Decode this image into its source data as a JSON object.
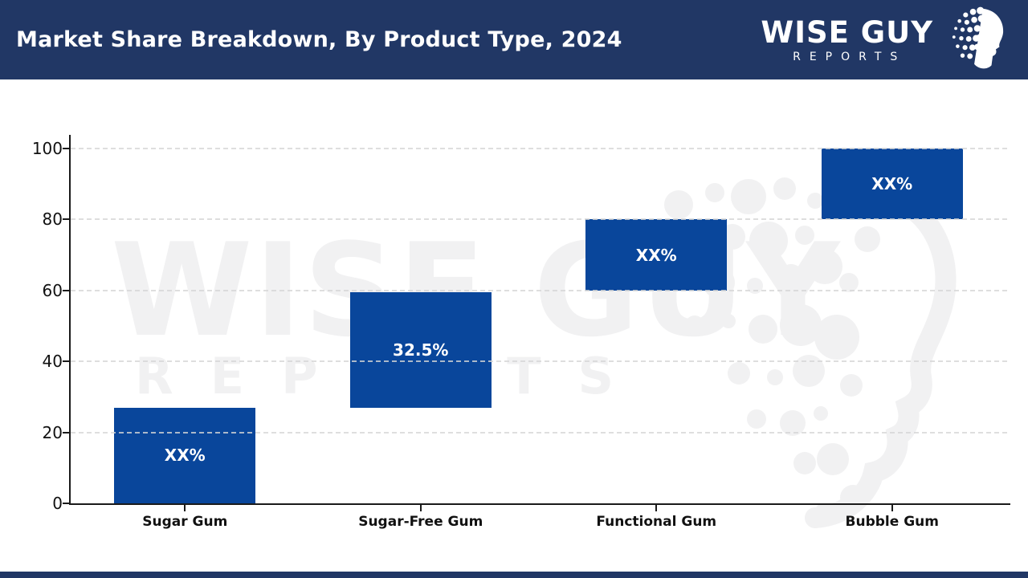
{
  "header": {
    "title": "Market Share Breakdown, By Product Type, 2024",
    "logo": {
      "line1": "WISE GUY",
      "line2": "REPORTS"
    }
  },
  "colors": {
    "header_navy": "#213765",
    "bar_blue": "#09469b",
    "grid_gray": "#d6d6d6",
    "watermark_gray": "#f1f1f2",
    "axis_black": "#1a1a1a"
  },
  "watermark": {
    "line1": "WISE GUY",
    "line2": "REPORTS"
  },
  "chart_data": {
    "type": "bar",
    "subtype": "floating-waterfall",
    "title": "Market Share Breakdown, By Product Type, 2024",
    "categories": [
      "Sugar Gum",
      "Sugar-Free Gum",
      "Functional Gum",
      "Bubble Gum"
    ],
    "bars": [
      {
        "category": "Sugar Gum",
        "start": 0,
        "end": 27,
        "label": "XX%"
      },
      {
        "category": "Sugar-Free Gum",
        "start": 27,
        "end": 59.5,
        "label": "32.5%"
      },
      {
        "category": "Functional Gum",
        "start": 60,
        "end": 80,
        "label": "XX%"
      },
      {
        "category": "Bubble Gum",
        "start": 80,
        "end": 100,
        "label": "XX%"
      }
    ],
    "xlabel": "",
    "ylabel": "",
    "yticks": [
      0,
      20,
      40,
      60,
      80,
      100
    ],
    "ylim": [
      0,
      104
    ],
    "grid": "horizontal-dashed",
    "legend": "none"
  }
}
